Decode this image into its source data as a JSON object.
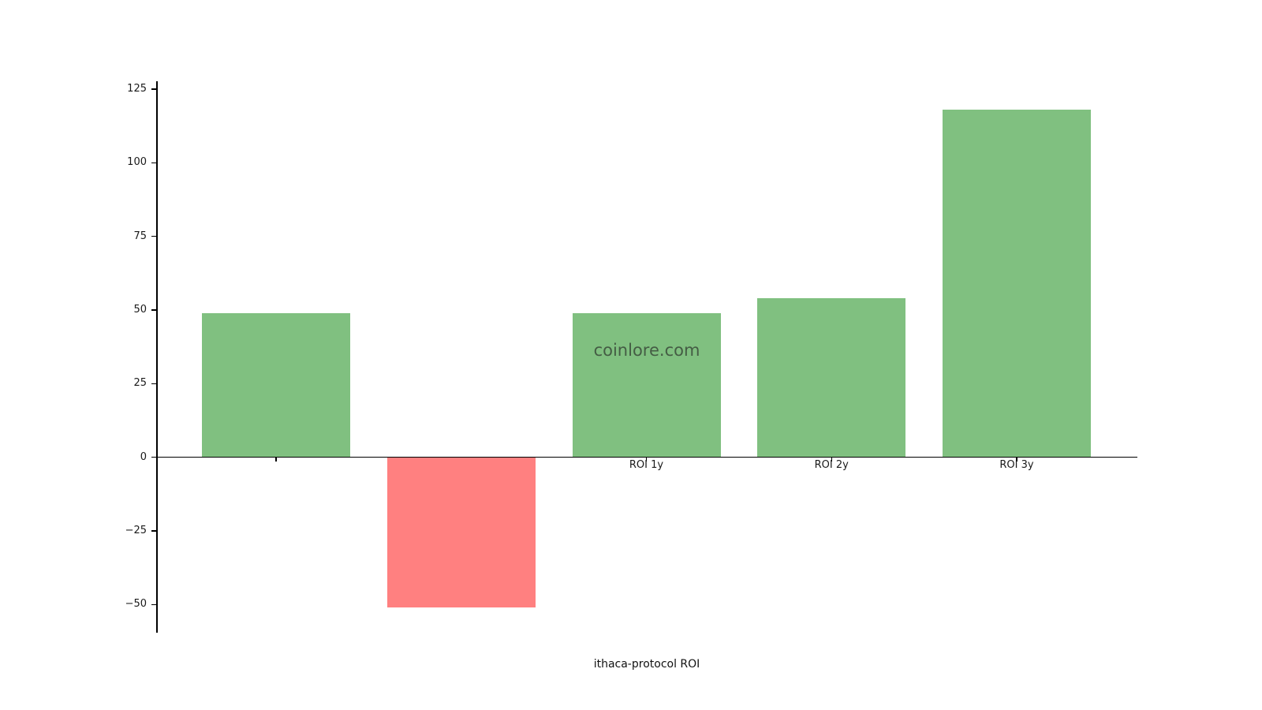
{
  "chart_data": {
    "type": "bar",
    "title": "ithaca-protocol ROI",
    "watermark": "coinlore.com",
    "categories": [
      "",
      "",
      "ROI 1y",
      "ROI 2y",
      "ROI 3y"
    ],
    "values": [
      49,
      -51,
      49,
      54,
      118
    ],
    "bar_colors": [
      "#80c080",
      "#ff8080",
      "#80c080",
      "#80c080",
      "#80c080"
    ],
    "positive_color": "#80c080",
    "negative_color": "#ff8080",
    "y_ticks": [
      125,
      100,
      75,
      50,
      25,
      0,
      -25,
      -50
    ],
    "ylim": [
      -60,
      128
    ],
    "xlabel": "",
    "ylabel": "",
    "grid": false,
    "legend_position": "none",
    "axis_color": "#000000",
    "background_color": "#ffffff"
  }
}
